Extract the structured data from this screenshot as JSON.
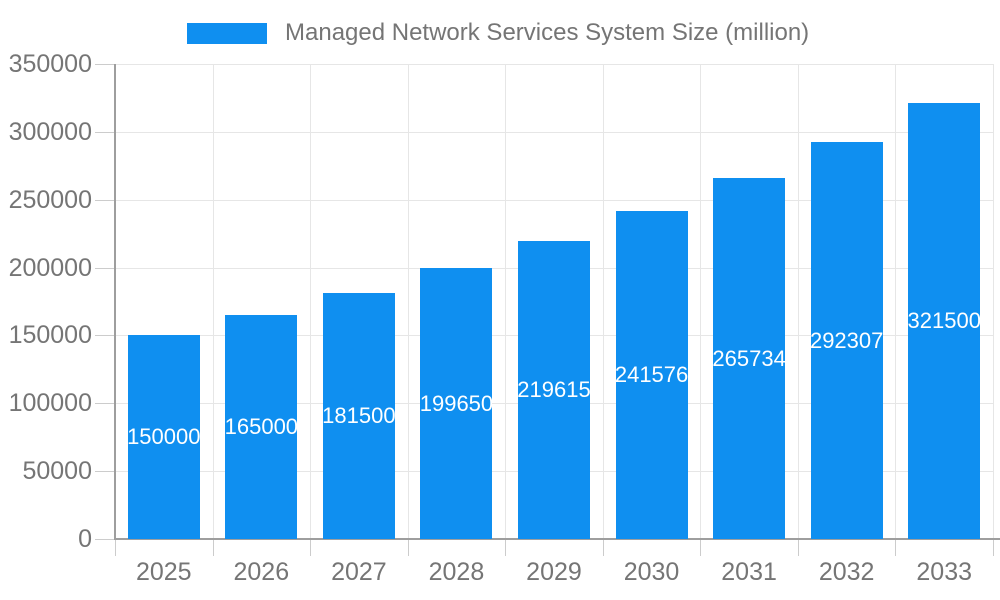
{
  "legend": {
    "label": "Managed Network Services System Size (million)"
  },
  "chart_data": {
    "type": "bar",
    "title": "Managed Network Services System Size (million)",
    "categories": [
      "2025",
      "2026",
      "2027",
      "2028",
      "2029",
      "2030",
      "2031",
      "2032",
      "2033"
    ],
    "series": [
      {
        "name": "Managed Network Services System Size (million)",
        "values": [
          150000,
          165000,
          181500,
          199650,
          219615,
          241576,
          265734,
          292307,
          321500
        ]
      }
    ],
    "bar_labels": [
      "150000",
      "165000",
      "181500",
      "199650",
      "219615",
      "241576",
      "265734",
      "292307",
      "321500"
    ],
    "xlabel": "",
    "ylabel": "",
    "ylim": [
      0,
      350000
    ],
    "yticks": [
      0,
      50000,
      100000,
      150000,
      200000,
      250000,
      300000,
      350000
    ],
    "grid": true,
    "legend_position": "top",
    "colors": {
      "bar": "#0f8ff0",
      "axis_text": "#757575",
      "bar_label_text": "#ffffff",
      "grid_line": "#e6e6e6",
      "axis_line": "#9e9e9e",
      "tick_line": "#cccccc",
      "background": "#ffffff"
    }
  }
}
